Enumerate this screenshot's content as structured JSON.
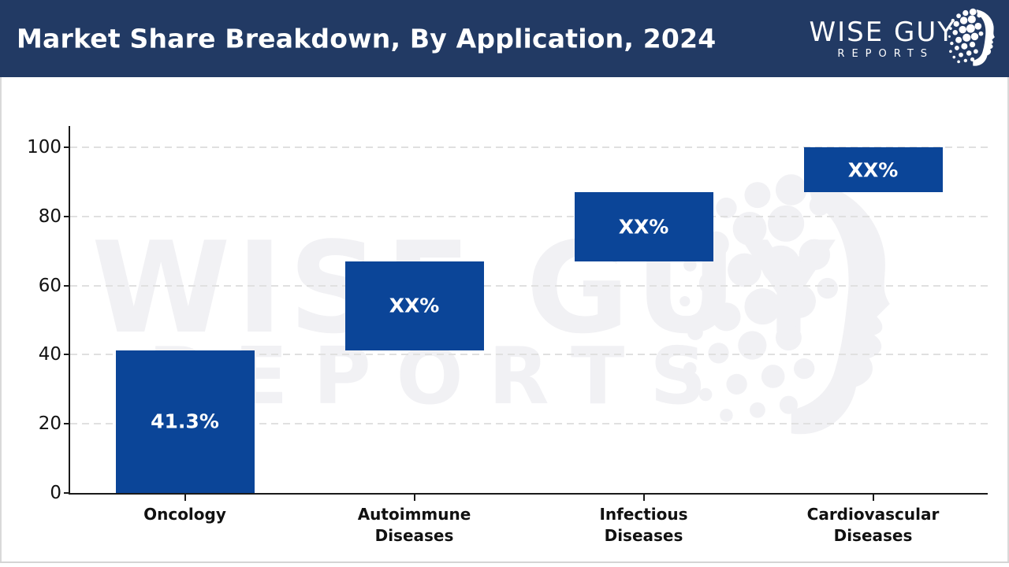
{
  "header": {
    "title": "Market Share Breakdown, By Application, 2024",
    "logo": {
      "primary": "WISE GUY",
      "secondary": "REPORTS"
    }
  },
  "watermark": {
    "primary": "WISE GUY",
    "secondary": "REPORTS"
  },
  "chart_data": {
    "type": "bar",
    "subtype": "waterfall",
    "title": "Market Share Breakdown, By Application, 2024",
    "categories": [
      [
        "Oncology"
      ],
      [
        "Autoimmune",
        "Diseases"
      ],
      [
        "Infectious",
        "Diseases"
      ],
      [
        "Cardiovascular",
        "Diseases"
      ]
    ],
    "segments": [
      {
        "category": "Oncology",
        "start": 0,
        "end": 41.3,
        "label": "41.3%"
      },
      {
        "category": "Autoimmune Diseases",
        "start": 41.3,
        "end": 67,
        "label": "XX%"
      },
      {
        "category": "Infectious Diseases",
        "start": 67,
        "end": 87,
        "label": "XX%"
      },
      {
        "category": "Cardiovascular Diseases",
        "start": 87,
        "end": 100,
        "label": "XX%"
      }
    ],
    "xlabel": "",
    "ylabel": "",
    "yticks": [
      0,
      20,
      40,
      60,
      80,
      100
    ],
    "ylim": [
      0,
      105
    ],
    "grid": "horizontal-dashed",
    "legend": "none",
    "colors": {
      "bar": "#0b4598",
      "bar_label": "#ffffff",
      "axis": "#1a1a1a",
      "grid": "#e0e0e0",
      "header_bg": "#223a64",
      "watermark": "#f1f1f4"
    }
  }
}
